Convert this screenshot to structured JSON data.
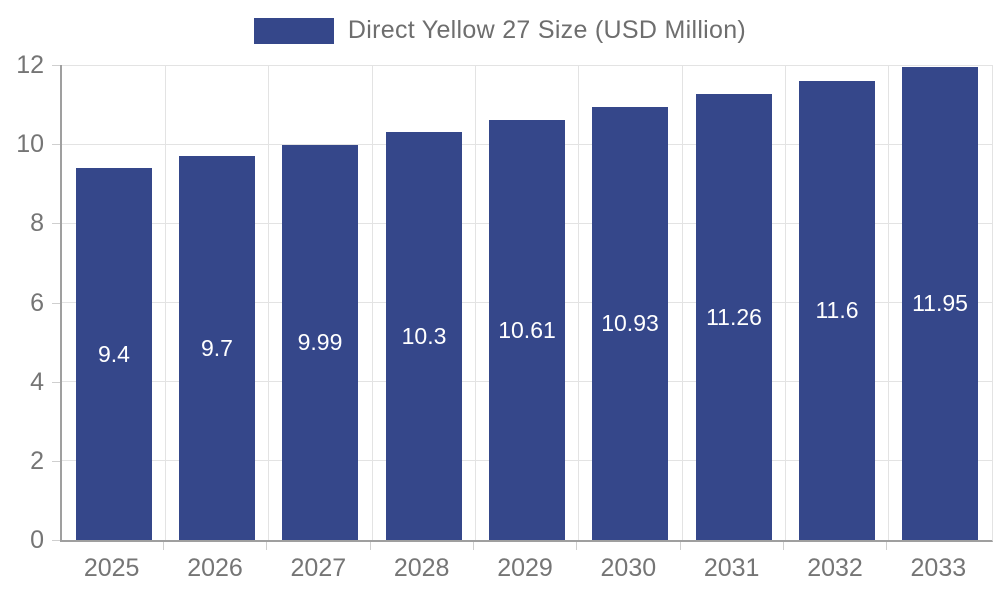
{
  "legend": {
    "label": "Direct Yellow 27 Size (USD Million)"
  },
  "chart_data": {
    "type": "bar",
    "title": "",
    "series_name": "Direct Yellow 27 Size (USD Million)",
    "categories": [
      "2025",
      "2026",
      "2027",
      "2028",
      "2029",
      "2030",
      "2031",
      "2032",
      "2033"
    ],
    "values": [
      9.4,
      9.7,
      9.99,
      10.3,
      10.61,
      10.93,
      11.26,
      11.6,
      11.95
    ],
    "value_labels": [
      "9.4",
      "9.7",
      "9.99",
      "10.3",
      "10.61",
      "10.93",
      "11.26",
      "11.6",
      "11.95"
    ],
    "xlabel": "",
    "ylabel": "",
    "ylim": [
      0,
      12
    ],
    "yticks": [
      0,
      2,
      4,
      6,
      8,
      10,
      12
    ],
    "grid": true,
    "legend_position": "top-center",
    "bar_color": "#35478a",
    "colors": {
      "grid": "#e3e3e3",
      "axis": "#9f9f9f",
      "tick_mark": "#cfcfcf",
      "tick_label": "#757575",
      "value_label": "#ffffff",
      "legend_text": "#6e6e6e",
      "background": "#ffffff"
    }
  }
}
